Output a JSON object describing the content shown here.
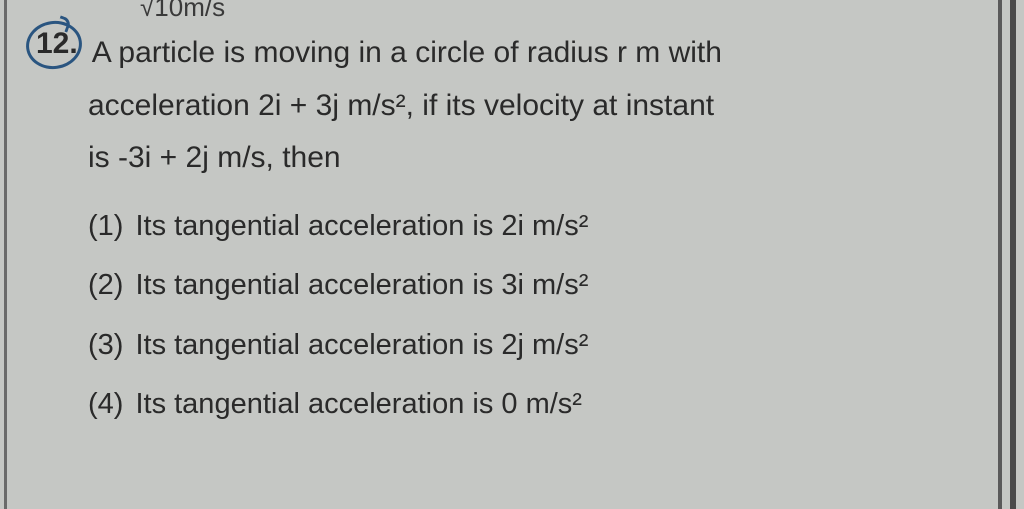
{
  "page": {
    "partial_top": "√10m/s",
    "background_color": "#c5c7c4",
    "text_color": "#2a2a2a",
    "annotation_color": "#2a5580",
    "font_size_question": 30,
    "font_size_option": 29,
    "line_height": 1.75
  },
  "question": {
    "number": "12.",
    "line1": "A particle is moving in a circle of radius r m with",
    "line2": "acceleration 2i + 3j m/s², if its velocity at instant",
    "line3": "is -3i + 2j m/s, then"
  },
  "options": [
    {
      "num": "(1)",
      "text": "Its tangential acceleration is 2i m/s²"
    },
    {
      "num": "(2)",
      "text": "Its tangential acceleration is 3i m/s²"
    },
    {
      "num": "(3)",
      "text": "Its tangential acceleration is 2j m/s²"
    },
    {
      "num": "(4)",
      "text": "Its tangential acceleration is 0 m/s²"
    }
  ]
}
